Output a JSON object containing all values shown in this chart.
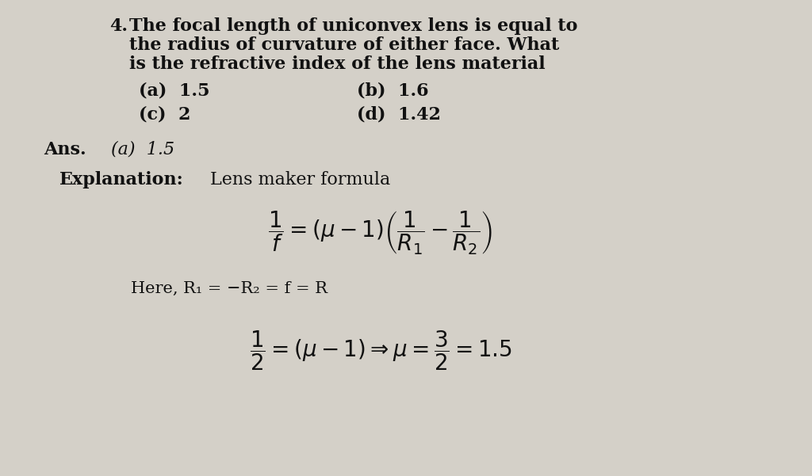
{
  "bg_color": "#d4d0c8",
  "text_color": "#111111",
  "fig_width": 10.24,
  "fig_height": 6.01,
  "question_number": "4.",
  "question_text_line1": "The focal length of uniconvex lens is equal to",
  "question_text_line2": "the radius of curvature of either face. What",
  "question_text_line3": "is the refractive index of the lens material",
  "opt_a": "(a)  1.5",
  "opt_b": "(b)  1.6",
  "opt_c": "(c)  2",
  "opt_d": "(d)  1.42",
  "ans_label": "Ans.",
  "ans_value": "(a)  1.5",
  "explanation_label": "Explanation:",
  "explanation_text": "Lens maker formula",
  "here_text": "Here, R₁ = −R₂ = f = R",
  "formula1": "\\frac{1}{f}=(\\mu-1)\\left(\\frac{1}{R_1}-\\frac{1}{R_2}\\right)",
  "formula2": "\\frac{1}{2}=(\\mu-1)\\Rightarrow\\mu=\\frac{3}{2}=1.5"
}
